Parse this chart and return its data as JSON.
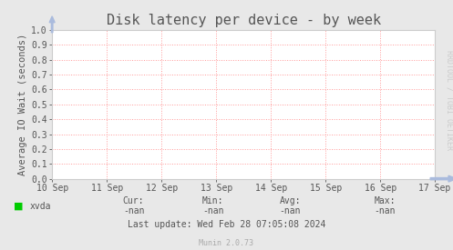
{
  "title": "Disk latency per device - by week",
  "ylabel": "Average IO Wait (seconds)",
  "background_color": "#e8e8e8",
  "plot_bg_color": "#ffffff",
  "grid_color": "#ff9999",
  "ylim": [
    0.0,
    1.0
  ],
  "yticks": [
    0.0,
    0.1,
    0.2,
    0.3,
    0.4,
    0.5,
    0.6,
    0.7,
    0.8,
    0.9,
    1.0
  ],
  "xtick_labels": [
    "10 Sep",
    "11 Sep",
    "12 Sep",
    "13 Sep",
    "14 Sep",
    "15 Sep",
    "16 Sep",
    "17 Sep"
  ],
  "legend_label": "xvda",
  "legend_color": "#00cc00",
  "cur_val": "-nan",
  "min_val": "-nan",
  "avg_val": "-nan",
  "max_val": "-nan",
  "last_update": "Last update: Wed Feb 28 07:05:08 2024",
  "munin_label": "Munin 2.0.73",
  "watermark": "RRDTOOL / TOBI OETIKER",
  "title_fontsize": 11,
  "axis_label_fontsize": 7.5,
  "tick_fontsize": 7,
  "stats_fontsize": 7,
  "watermark_fontsize": 6,
  "munin_fontsize": 6,
  "border_color": "#cccccc",
  "tick_color": "#555555",
  "font_color": "#555555",
  "arrow_color": "#aabbdd",
  "font_family": "monospace"
}
